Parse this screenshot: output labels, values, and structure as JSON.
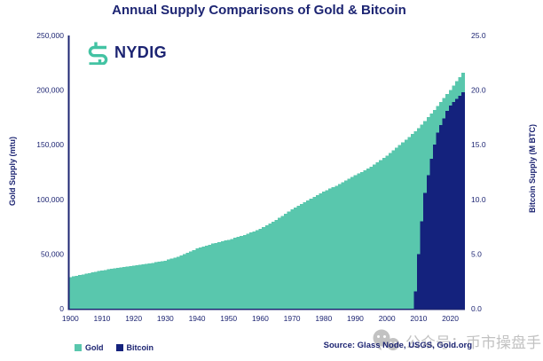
{
  "title": "Annual Supply Comparisons of Gold & Bitcoin",
  "logo": {
    "text": "NYDIG",
    "icon_color": "#43c3a3"
  },
  "axes": {
    "left": {
      "title": "Gold Supply (mtu)",
      "ticks": [
        {
          "label": "0",
          "value": 0
        },
        {
          "label": "50,000",
          "value": 50000
        },
        {
          "label": "100,000",
          "value": 100000
        },
        {
          "label": "150,000",
          "value": 150000
        },
        {
          "label": "200,000",
          "value": 200000
        },
        {
          "label": "250,000",
          "value": 250000
        }
      ],
      "max": 250000
    },
    "right": {
      "title": "Bitcoin Supply (M BTC)",
      "ticks": [
        {
          "label": "0.0",
          "value": 0
        },
        {
          "label": "5.0",
          "value": 5
        },
        {
          "label": "10.0",
          "value": 10
        },
        {
          "label": "15.0",
          "value": 15
        },
        {
          "label": "20.0",
          "value": 20
        },
        {
          "label": "25.0",
          "value": 25
        }
      ],
      "max": 25
    },
    "x": {
      "ticks": [
        1900,
        1910,
        1920,
        1930,
        1940,
        1950,
        1960,
        1970,
        1980,
        1990,
        2000,
        2010,
        2020
      ]
    }
  },
  "legend_items": [
    {
      "label": "Gold",
      "color": "#59c7ad"
    },
    {
      "label": "Bitcoin",
      "color": "#14227d"
    }
  ],
  "source": "Source: Glass Node, USGS, Gold.org",
  "watermark": {
    "text": "公众号：币市操盘手",
    "icon": "wechat-icon"
  },
  "colors": {
    "gold_area": "#59c7ad",
    "bitcoin_bar": "#14227d",
    "text_navy": "#1c2472",
    "axis_line": "#1c2472",
    "watermark_gray": "#ababab",
    "background": "#ffffff"
  },
  "chart_data": {
    "type": "bar",
    "title": "Annual Supply Comparisons of Gold & Bitcoin",
    "x_range": [
      1900,
      2024
    ],
    "bar_width_years": 1,
    "grid": false,
    "legend_position": "bottom-left",
    "series": [
      {
        "name": "Gold",
        "axis": "left",
        "ylabel": "Gold Supply (mtu)",
        "ylim": [
          0,
          250000
        ],
        "color": "#59c7ad",
        "anchor_years": [
          1900,
          1905,
          1910,
          1915,
          1920,
          1925,
          1930,
          1935,
          1940,
          1945,
          1950,
          1955,
          1960,
          1965,
          1970,
          1975,
          1980,
          1985,
          1990,
          1995,
          2000,
          2005,
          2010,
          2015,
          2020,
          2024
        ],
        "anchor_values": [
          29000,
          32000,
          35000,
          37500,
          39500,
          41500,
          44000,
          48500,
          55000,
          59500,
          63000,
          67500,
          73000,
          81000,
          91000,
          99000,
          107000,
          114000,
          122000,
          130000,
          140000,
          152000,
          165000,
          182000,
          200000,
          216000
        ]
      },
      {
        "name": "Bitcoin",
        "axis": "right",
        "ylabel": "Bitcoin Supply (M BTC)",
        "ylim": [
          0,
          25
        ],
        "color": "#14227d",
        "years": [
          2009,
          2010,
          2011,
          2012,
          2013,
          2014,
          2015,
          2016,
          2017,
          2018,
          2019,
          2020,
          2021,
          2022,
          2023,
          2024
        ],
        "values": [
          1.6,
          5.0,
          8.0,
          10.6,
          12.2,
          13.7,
          15.0,
          16.1,
          16.8,
          17.4,
          18.1,
          18.6,
          18.9,
          19.2,
          19.5,
          19.8
        ]
      }
    ]
  }
}
